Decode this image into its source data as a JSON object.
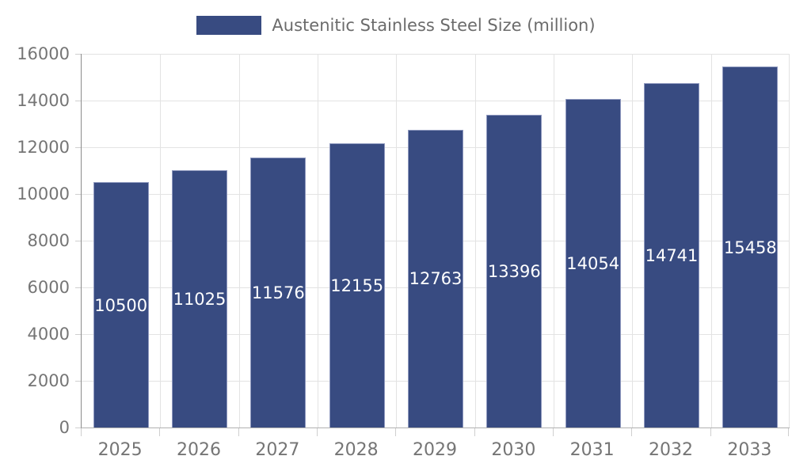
{
  "legend": {
    "items": [
      {
        "label": "Austenitic Stainless Steel Size (million)"
      }
    ]
  },
  "chart_data": {
    "type": "bar",
    "title": "Austenitic Stainless Steel Size (million)",
    "categories": [
      "2025",
      "2026",
      "2027",
      "2028",
      "2029",
      "2030",
      "2031",
      "2032",
      "2033"
    ],
    "values": [
      10500,
      11025,
      11576,
      12155,
      12763,
      13396,
      14054,
      14741,
      15458
    ],
    "xlabel": "",
    "ylabel": "",
    "ylim": [
      0,
      16000
    ],
    "yticks": [
      0,
      2000,
      4000,
      6000,
      8000,
      10000,
      12000,
      14000,
      16000
    ],
    "grid": true,
    "legend_position": "top-center",
    "value_labels_position": "inside-center",
    "colors": {
      "bar_fill": "#384B81",
      "bar_border": "#8F99BF",
      "value_label": "#FFFFFF",
      "axis_text": "#757575",
      "legend_text": "#6B6B6B",
      "grid_line": "#E3E3E3",
      "y_axis_line": "#8C8C8C",
      "x_axis_line": "#B0B0B0",
      "tick": "#CFCFCF",
      "background": "#FFFFFF"
    }
  }
}
